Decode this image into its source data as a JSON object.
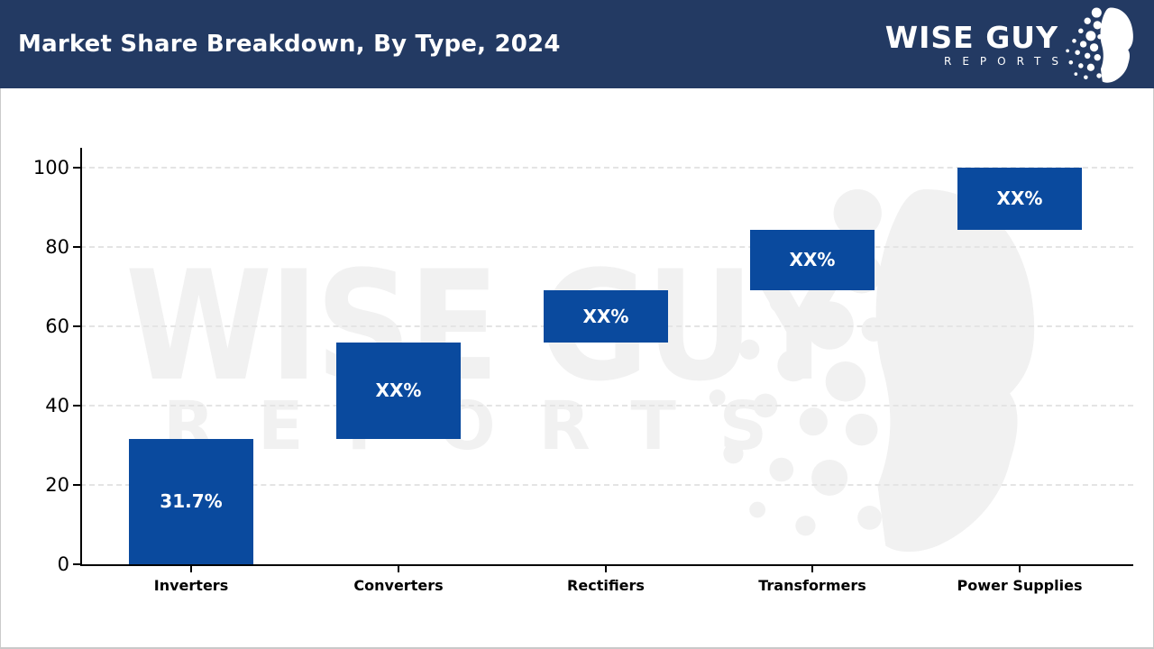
{
  "header": {
    "title": "Market Share Breakdown, By Type, 2024",
    "logo": {
      "line1": "WISE GUY",
      "line2": "REPORTS"
    }
  },
  "watermark": {
    "line1": "WISE GUY",
    "line2": "REPORTS"
  },
  "colors": {
    "header_bg": "#233a63",
    "bar": "#0a4a9e",
    "bar_label": "#ffffff",
    "grid": "#e4e4e4",
    "axis": "#000000",
    "watermark": "#f1f1f1"
  },
  "chart_data": {
    "type": "bar",
    "subtype": "waterfall",
    "title": "Market Share Breakdown, By Type, 2024",
    "xlabel": "",
    "ylabel": "",
    "ylim": [
      0,
      105
    ],
    "yticks": [
      0,
      20,
      40,
      60,
      80,
      100
    ],
    "grid": "horizontal-dashed",
    "legend": "none",
    "categories": [
      "Inverters",
      "Converters",
      "Rectifiers",
      "Transformers",
      "Power Supplies"
    ],
    "segments": [
      {
        "category": "Inverters",
        "start": 0,
        "end": 31.7,
        "label": "31.7%"
      },
      {
        "category": "Converters",
        "start": 31.7,
        "end": 55.8,
        "label": "XX%"
      },
      {
        "category": "Rectifiers",
        "start": 55.8,
        "end": 69.2,
        "label": "XX%"
      },
      {
        "category": "Transformers",
        "start": 69.2,
        "end": 84.4,
        "label": "XX%"
      },
      {
        "category": "Power Supplies",
        "start": 84.4,
        "end": 100,
        "label": "XX%"
      }
    ]
  }
}
